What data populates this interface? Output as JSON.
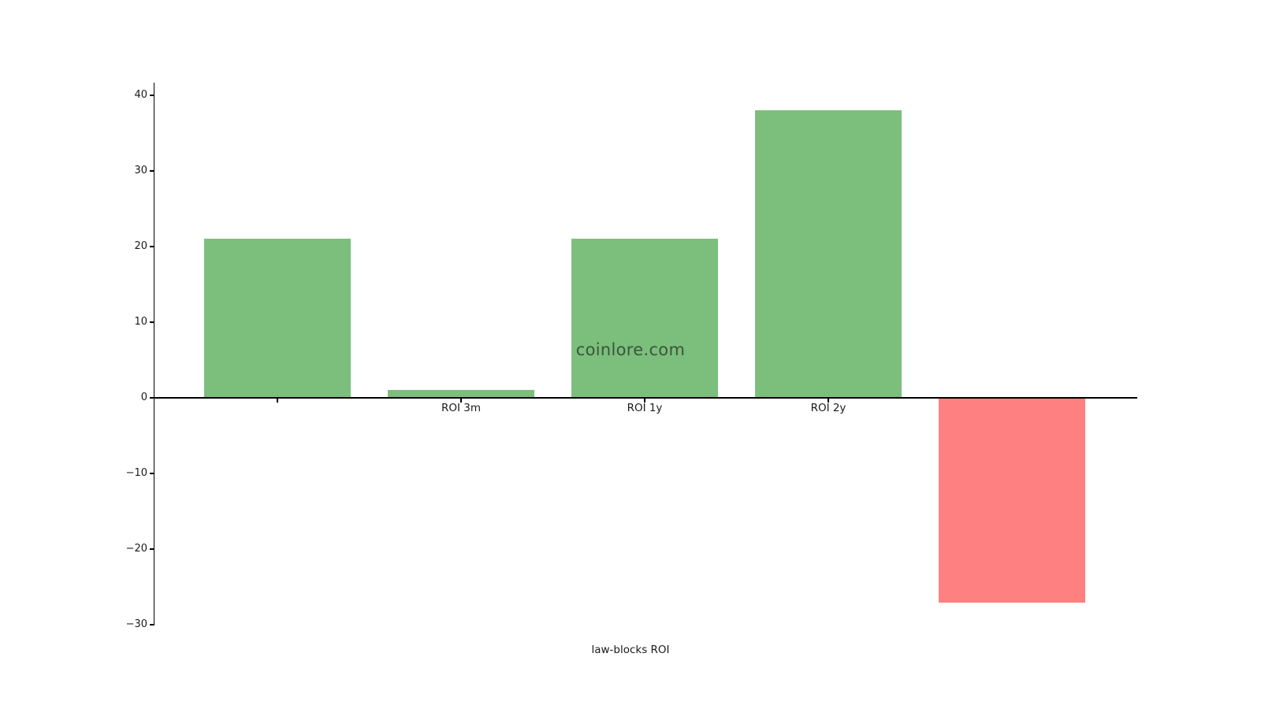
{
  "page": {
    "watermark": "coinlore.com"
  },
  "chart_data": {
    "type": "bar",
    "title": "",
    "xlabel": "law-blocks ROI",
    "ylabel": "",
    "categories": [
      "",
      "ROI 3m",
      "ROI 1y",
      "ROI 2y",
      ""
    ],
    "values": [
      21,
      1,
      21,
      38,
      -27
    ],
    "bar_colors": [
      "#7cbe7c",
      "#7cbe7c",
      "#7cbe7c",
      "#7cbe7c",
      "#ff8080"
    ],
    "positive_color": "#7cbe7c",
    "negative_color": "#ff8080",
    "axis_color": "#000000",
    "ylim": [
      -30,
      42
    ],
    "yticks": [
      40,
      30,
      20,
      10,
      0,
      -10,
      -20,
      -30
    ],
    "grid": false,
    "legend": false,
    "watermark": "coinlore.com"
  }
}
